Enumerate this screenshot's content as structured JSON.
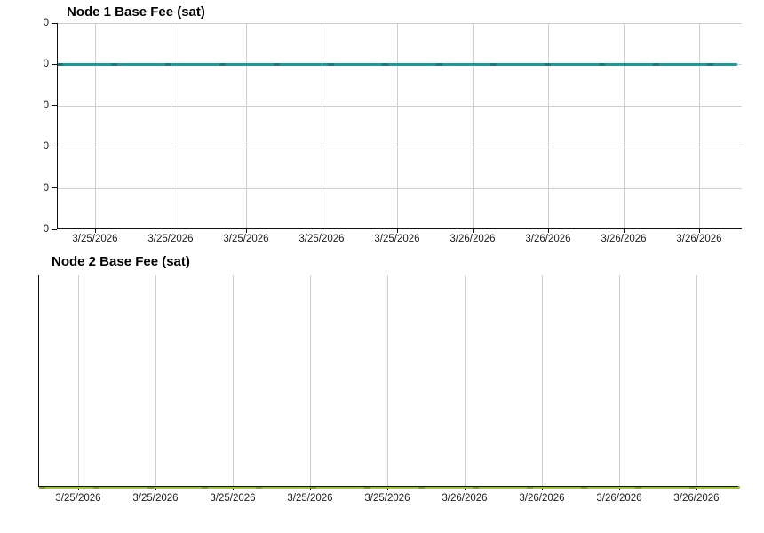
{
  "page": {
    "background": "#ffffff"
  },
  "colors": {
    "grid": "#cfcfcf",
    "axis": "#111111",
    "label": "#1b1b1b",
    "node1_series": "#1f9a9a",
    "node2_series": "#a0c432"
  },
  "chart_data": [
    {
      "type": "line",
      "title": "Node 1 Base Fee (sat)",
      "x_tick_labels": [
        "3/25/2026",
        "3/25/2026",
        "3/25/2026",
        "3/25/2026",
        "3/25/2026",
        "3/26/2026",
        "3/26/2026",
        "3/26/2026",
        "3/26/2026"
      ],
      "y_tick_labels": [
        "0",
        "0",
        "0",
        "0",
        "0",
        "0"
      ],
      "series": [
        {
          "name": "Node 1 Base Fee",
          "color": "#1f9a9a",
          "values": [
            0,
            0,
            0,
            0,
            0,
            0,
            0,
            0,
            0
          ]
        }
      ],
      "line_y_fraction": 0.2,
      "grid": {
        "horizontal": true,
        "vertical": true
      },
      "legend": "none"
    },
    {
      "type": "line",
      "title": "Node 2 Base Fee (sat)",
      "x_tick_labels": [
        "3/25/2026",
        "3/25/2026",
        "3/25/2026",
        "3/25/2026",
        "3/25/2026",
        "3/26/2026",
        "3/26/2026",
        "3/26/2026",
        "3/26/2026"
      ],
      "y_tick_labels": [],
      "series": [
        {
          "name": "Node 2 Base Fee",
          "color": "#a0c432",
          "values": [
            0,
            0,
            0,
            0,
            0,
            0,
            0,
            0,
            0
          ]
        }
      ],
      "line_y_fraction": 1.0,
      "grid": {
        "horizontal": false,
        "vertical": true
      },
      "legend": "none"
    }
  ]
}
